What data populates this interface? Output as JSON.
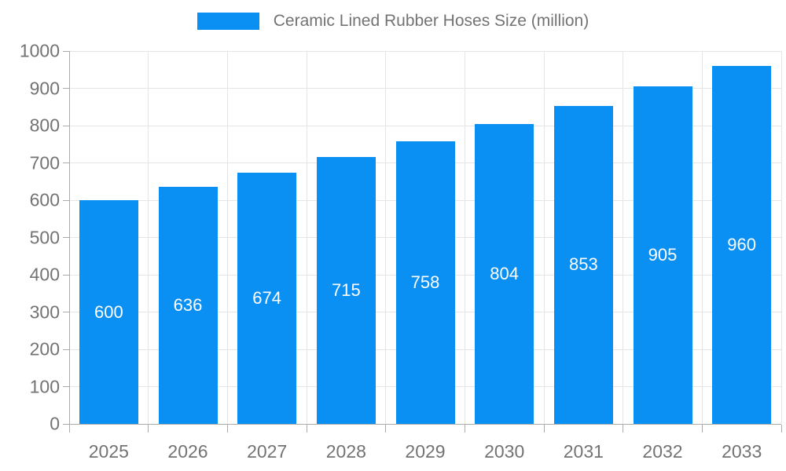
{
  "legend": {
    "label": "Ceramic Lined Rubber Hoses Size (million)"
  },
  "colors": {
    "bar": "#0a8ff2",
    "grid": "#e5e5e5",
    "axis": "#ababab",
    "text": "#737373",
    "bar_label": "#ffffff"
  },
  "chart_data": {
    "type": "bar",
    "title": "Ceramic Lined Rubber Hoses Size (million)",
    "categories": [
      "2025",
      "2026",
      "2027",
      "2028",
      "2029",
      "2030",
      "2031",
      "2032",
      "2033"
    ],
    "values": [
      600,
      636,
      674,
      715,
      758,
      804,
      853,
      905,
      960
    ],
    "xlabel": "",
    "ylabel": "",
    "ylim": [
      0,
      1000
    ],
    "ytick_step": 100,
    "ytick_labels": [
      "0",
      "100",
      "200",
      "300",
      "400",
      "500",
      "600",
      "700",
      "800",
      "900",
      "1000"
    ],
    "grid": true,
    "legend_position": "top",
    "bar_value_labels": true
  }
}
